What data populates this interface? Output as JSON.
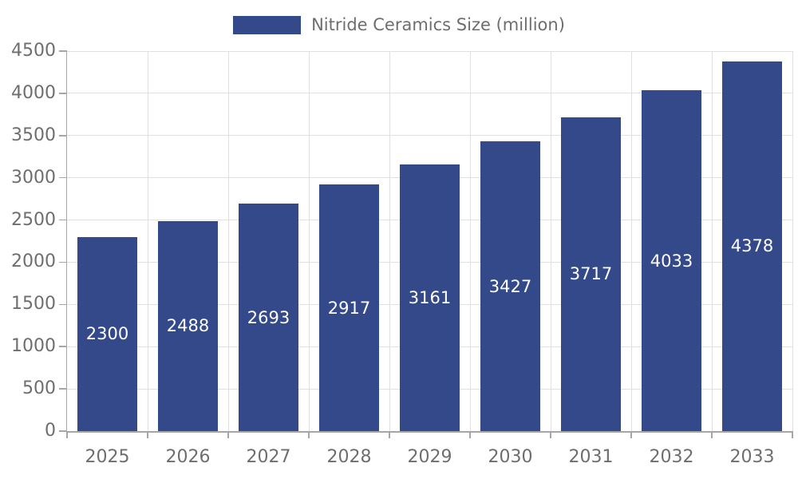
{
  "chart_data": {
    "type": "bar",
    "title": "Nitride Ceramics Size (million)",
    "legend_entries": [
      "Nitride Ceramics Size (million)"
    ],
    "legend_position": "top-center",
    "categories": [
      "2025",
      "2026",
      "2027",
      "2028",
      "2029",
      "2030",
      "2031",
      "2032",
      "2033"
    ],
    "values": [
      2300,
      2488,
      2693,
      2917,
      3161,
      3427,
      3717,
      4033,
      4378
    ],
    "xlabel": "",
    "ylabel": "",
    "ylim": [
      0,
      4500
    ],
    "yticks": [
      0,
      500,
      1000,
      1500,
      2000,
      2500,
      3000,
      3500,
      4000,
      4500
    ],
    "grid": true,
    "value_labels_shown": true,
    "colors": {
      "bar": "#34498A",
      "value_label": "#FFFFFF",
      "tick_text": "#6E6E6E",
      "legend_text": "#6E6E6E",
      "axis": "#A6A6A6",
      "gridline": "#E0E0E0",
      "background": "#FFFFFF"
    }
  }
}
